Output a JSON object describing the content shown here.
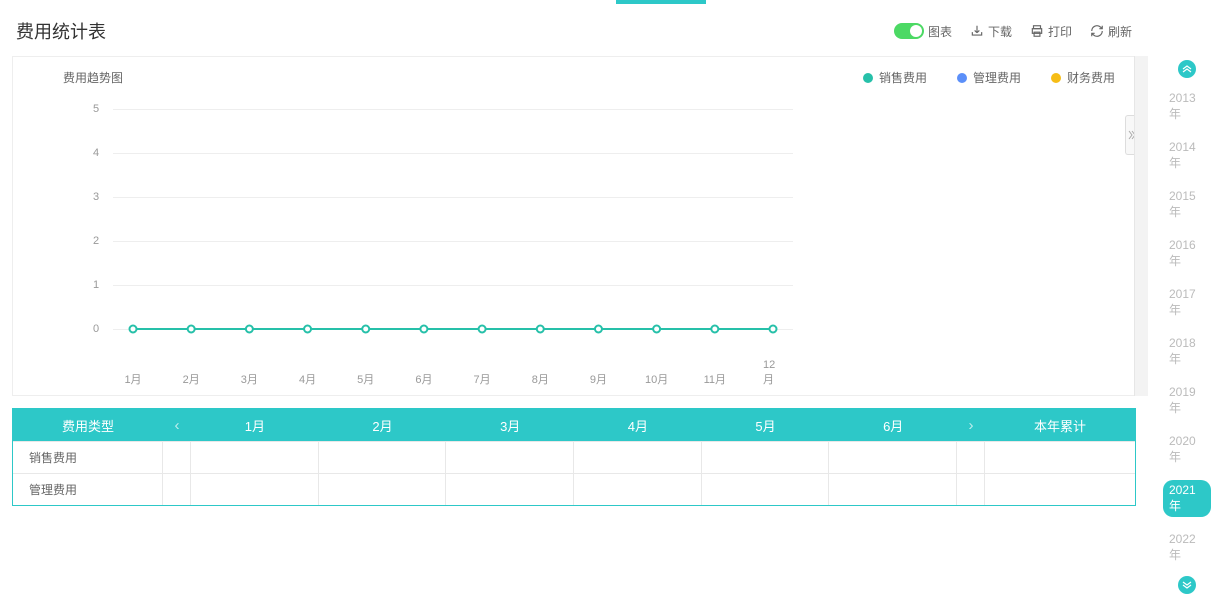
{
  "page": {
    "title": "费用统计表"
  },
  "actions": {
    "chart_toggle_label": "图表",
    "download_label": "下载",
    "print_label": "打印",
    "refresh_label": "刷新"
  },
  "chart": {
    "title": "费用趋势图",
    "type": "line",
    "ylim": [
      0,
      5
    ],
    "ytick_step": 1,
    "y_ticks": [
      "0",
      "1",
      "2",
      "3",
      "4",
      "5"
    ],
    "x_labels": [
      "1月",
      "2月",
      "3月",
      "4月",
      "5月",
      "6月",
      "7月",
      "8月",
      "9月",
      "10月",
      "11月",
      "12月"
    ],
    "grid_color": "#eeeeee",
    "background_color": "#ffffff",
    "axis_label_color": "#999999",
    "axis_label_fontsize": 11,
    "title_fontsize": 12,
    "marker_style": "hollow-circle",
    "marker_size": 7,
    "line_width": 2,
    "series": [
      {
        "name": "销售费用",
        "color": "#26c0a9",
        "values": [
          0,
          0,
          0,
          0,
          0,
          0,
          0,
          0,
          0,
          0,
          0,
          0
        ]
      },
      {
        "name": "管理费用",
        "color": "#5b8ff9",
        "values": [
          0,
          0,
          0,
          0,
          0,
          0,
          0,
          0,
          0,
          0,
          0,
          0
        ]
      },
      {
        "name": "财务费用",
        "color": "#f6bd16",
        "values": [
          0,
          0,
          0,
          0,
          0,
          0,
          0,
          0,
          0,
          0,
          0,
          0
        ]
      }
    ]
  },
  "table": {
    "header": {
      "type_col": "费用类型",
      "months": [
        "1月",
        "2月",
        "3月",
        "4月",
        "5月",
        "6月"
      ],
      "total_col": "本年累计",
      "header_bg": "#2dc8c8",
      "header_text_color": "#ffffff"
    },
    "rows": [
      {
        "type": "销售费用",
        "cells": [
          "",
          "",
          "",
          "",
          "",
          ""
        ],
        "total": ""
      },
      {
        "type": "管理费用",
        "cells": [
          "",
          "",
          "",
          "",
          "",
          ""
        ],
        "total": ""
      }
    ],
    "border_color": "#e8e8e8"
  },
  "year_sidebar": {
    "years": [
      "2013年",
      "2014年",
      "2015年",
      "2016年",
      "2017年",
      "2018年",
      "2019年",
      "2020年",
      "2021年",
      "2022年"
    ],
    "selected": "2021年",
    "pill_bg": "#2dc8c8",
    "nav_bg": "#2dc8c8"
  },
  "accent_color": "#2dc8c8"
}
